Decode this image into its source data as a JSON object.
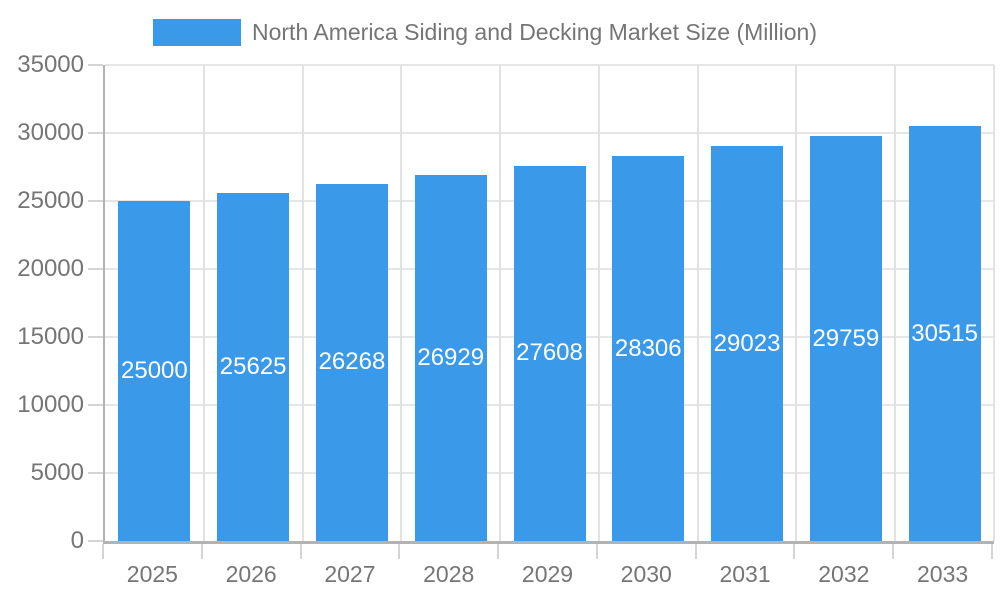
{
  "legend": {
    "label": "North America Siding and Decking Market Size (Million)"
  },
  "chart_data": {
    "type": "bar",
    "title": "North America Siding and Decking Market Size (Million)",
    "categories": [
      "2025",
      "2026",
      "2027",
      "2028",
      "2029",
      "2030",
      "2031",
      "2032",
      "2033"
    ],
    "values": [
      25000,
      25625,
      26268,
      26929,
      27608,
      28306,
      29023,
      29759,
      30515
    ],
    "xlabel": "",
    "ylabel": "",
    "ylim": [
      0,
      35000
    ],
    "yticks": [
      0,
      5000,
      10000,
      15000,
      20000,
      25000,
      30000,
      35000
    ],
    "grid": true,
    "legend_position": "top",
    "colors": {
      "bar": "#3b99ea",
      "bar_value_text": "#ffffff",
      "axis_text": "#757575",
      "axis_line": "#b3b3b3",
      "tick_line": "#d5d5d5",
      "hgrid_line": "#e6e6e6",
      "vgrid_line": "#e2e2e2"
    }
  }
}
